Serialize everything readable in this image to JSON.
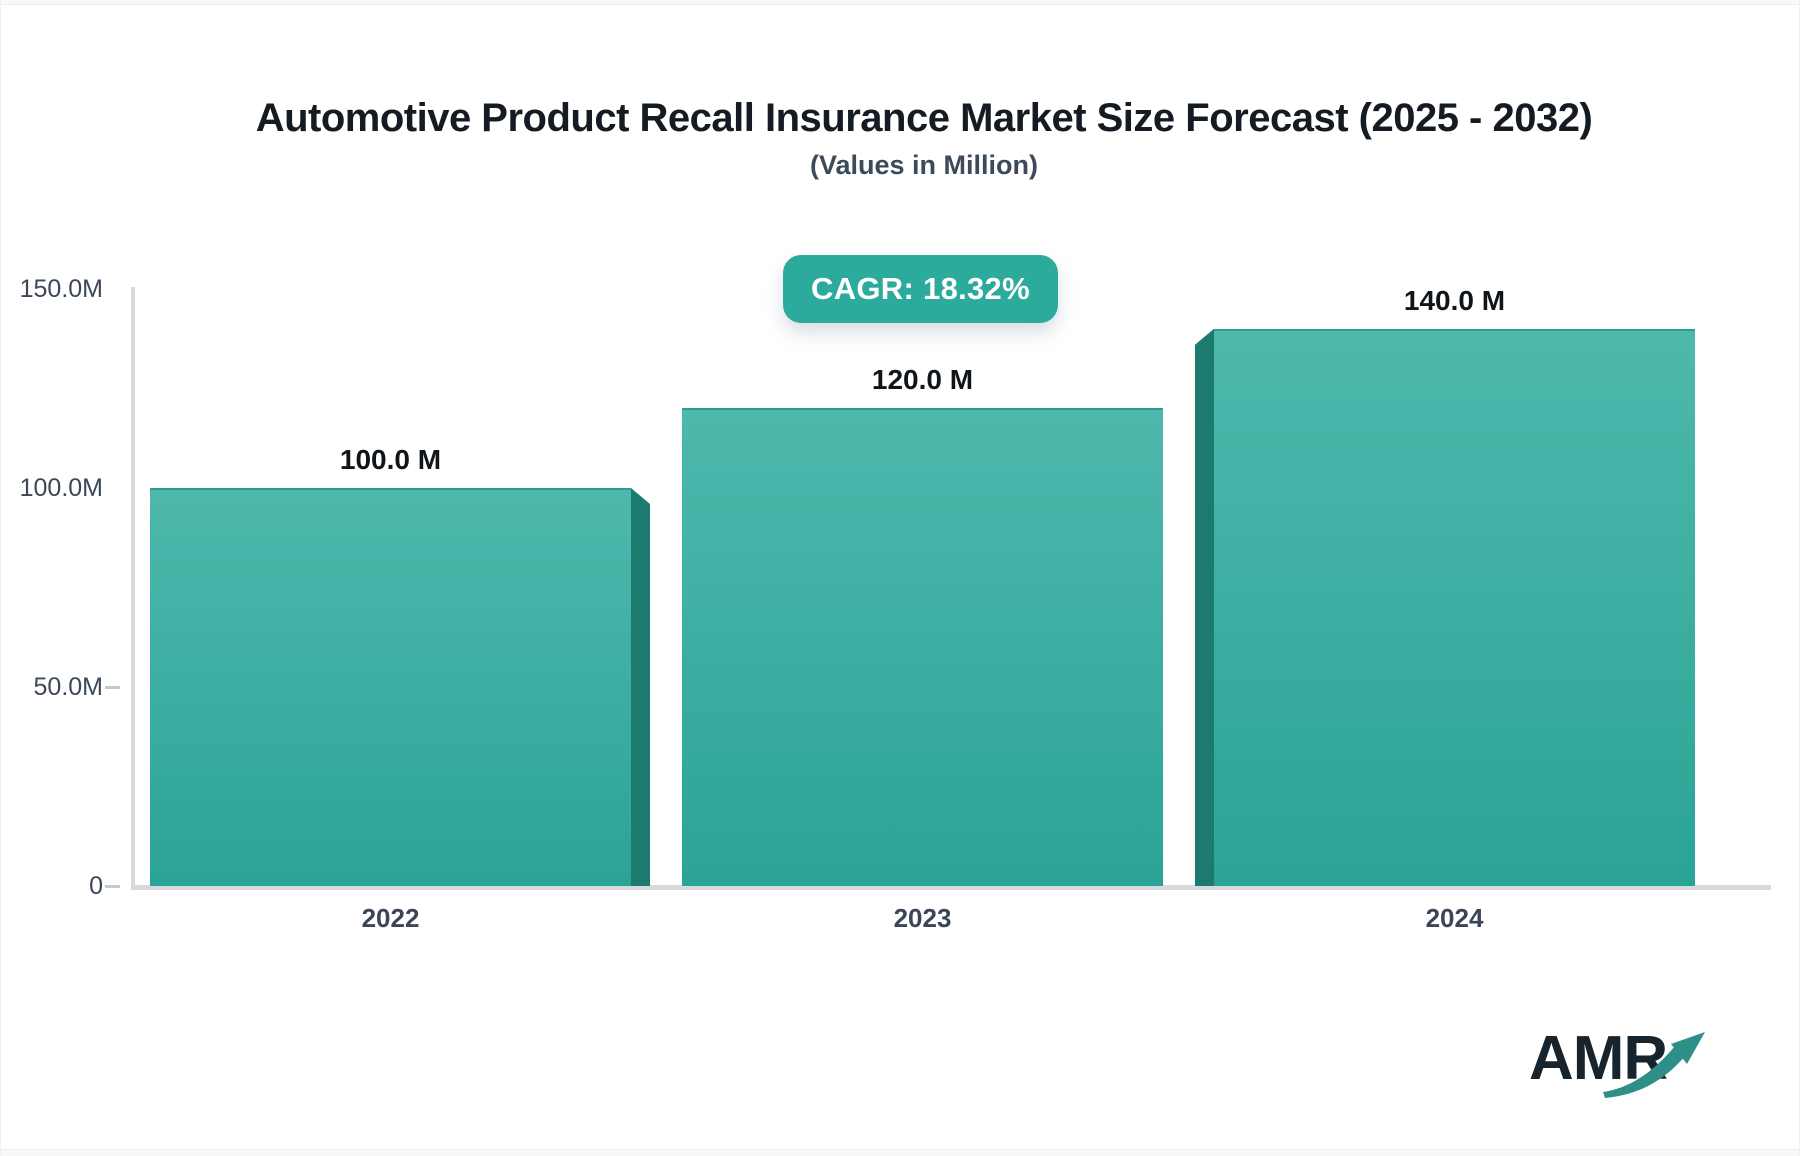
{
  "page": {
    "title": "Automotive Product Recall Insurance Market Size Forecast (2025 - 2032)",
    "subtitle": "(Values in Million)",
    "cagr_badge": "CAGR: 18.32%"
  },
  "chart_data": {
    "type": "bar",
    "title": "Automotive Product Recall Insurance Market Size Forecast (2025 - 2032)",
    "subtitle": "(Values in Million)",
    "unit": "Million",
    "cagr": "18.32%",
    "categories": [
      "2022",
      "2023",
      "2024"
    ],
    "values": [
      100.0,
      120.0,
      140.0
    ],
    "value_labels": [
      "100.0 M",
      "120.0 M",
      "140.0 M"
    ],
    "y_ticks": [
      {
        "label": "150.0M",
        "value": 150
      },
      {
        "label": "100.0M",
        "value": 100
      },
      {
        "label": "50.0M",
        "value": 50
      },
      {
        "label": "0",
        "value": 0
      }
    ],
    "ylim": [
      0,
      150
    ],
    "xlabel": "",
    "ylabel": "",
    "grid": false,
    "legend": "none",
    "bar_color_top": "#4fb8ad",
    "bar_color_bottom": "#2aa496",
    "bar_side_color": "#1d7a6f"
  },
  "colors": {
    "accent_teal": "#2caa9c",
    "axis_gray": "#d8dadd",
    "tick_label_slate": "#3c4857",
    "title_dark": "#141b23",
    "logo_dark": "#18242d",
    "logo_arrow_teal": "#2e8f88"
  },
  "logo": {
    "text": "AMR"
  }
}
